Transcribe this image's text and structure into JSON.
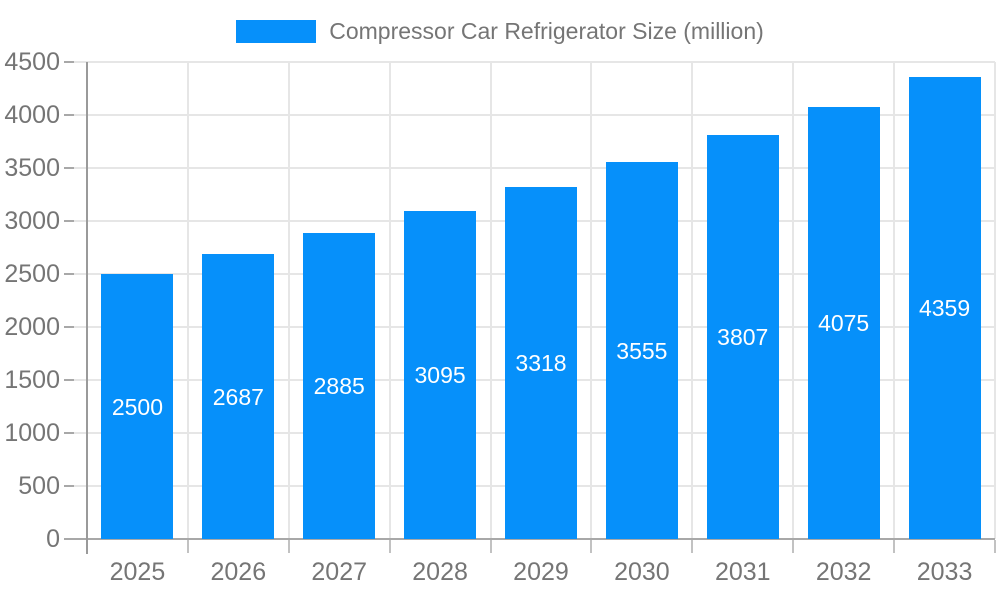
{
  "chart_data": {
    "type": "bar",
    "title": "Compressor Car Refrigerator Size (million)",
    "categories": [
      "2025",
      "2026",
      "2027",
      "2028",
      "2029",
      "2030",
      "2031",
      "2032",
      "2033"
    ],
    "values": [
      2500,
      2687,
      2885,
      3095,
      3318,
      3555,
      3807,
      4075,
      4359
    ],
    "xlabel": "",
    "ylabel": "",
    "ylim": [
      0,
      4500
    ],
    "ytick_step": 500,
    "ytick_labels": [
      "0",
      "500",
      "1000",
      "1500",
      "2000",
      "2500",
      "3000",
      "3500",
      "4000",
      "4500"
    ],
    "grid": true,
    "legend_position": "top",
    "bar_color": "#0690FA",
    "value_label_color": "#ffffff",
    "axis_text_color": "#757575",
    "grid_color": "#e6e6e6"
  }
}
